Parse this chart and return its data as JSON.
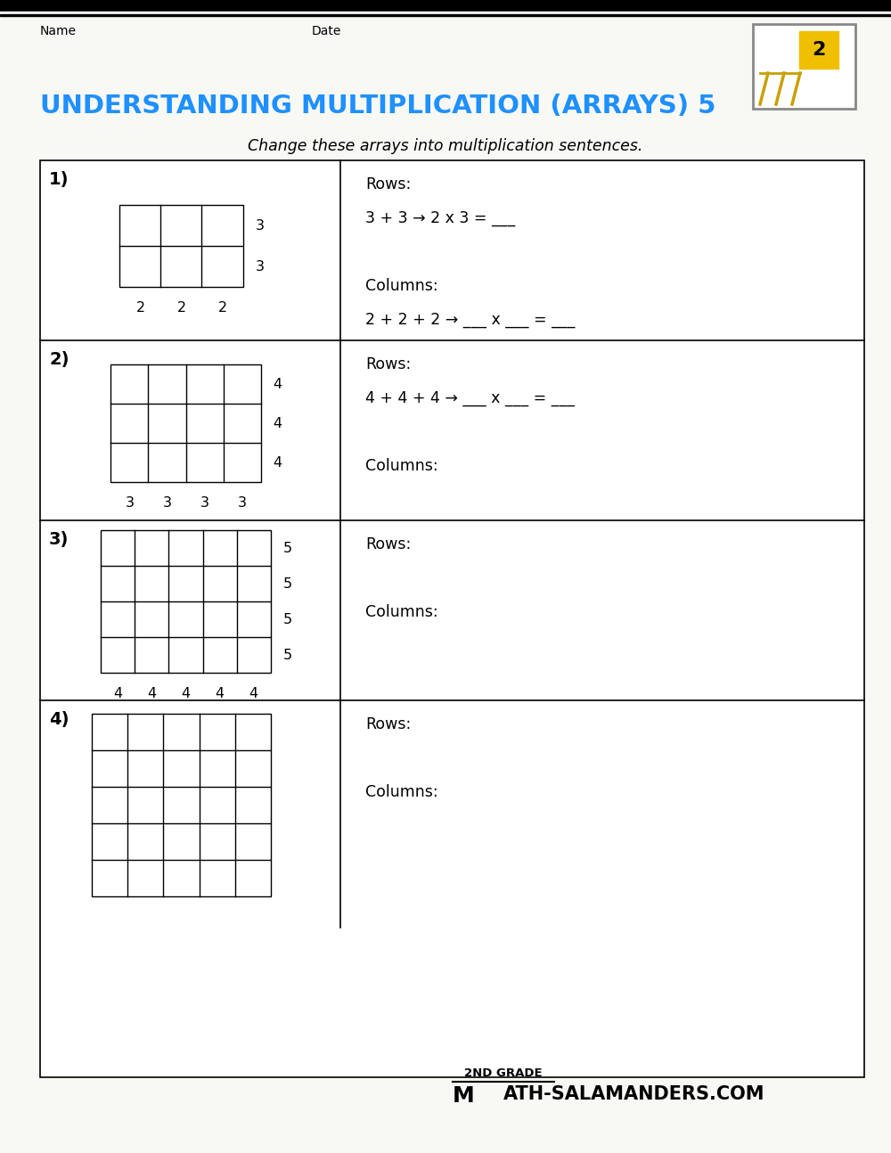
{
  "title": "UNDERSTANDING MULTIPLICATION (ARRAYS) 5",
  "subtitle": "Change these arrays into multiplication sentences.",
  "name_label": "Name",
  "date_label": "Date",
  "bg_color": "#f8f8f4",
  "title_color": "#1e90ff",
  "problems": [
    {
      "number": "1)",
      "rows": 2,
      "cols": 3,
      "row_label": "3",
      "col_label": "2",
      "right_lines": [
        "Rows:",
        "3 + 3 → 2 x 3 = ___",
        "",
        "Columns:",
        "2 + 2 + 2 → ___ x ___ = ___"
      ]
    },
    {
      "number": "2)",
      "rows": 3,
      "cols": 4,
      "row_label": "4",
      "col_label": "3",
      "right_lines": [
        "Rows:",
        "4 + 4 + 4 → ___ x ___ = ___",
        "",
        "Columns:"
      ]
    },
    {
      "number": "3)",
      "rows": 4,
      "cols": 5,
      "row_label": "5",
      "col_label": "4",
      "right_lines": [
        "Rows:",
        "",
        "Columns:"
      ]
    },
    {
      "number": "4)",
      "rows": 5,
      "cols": 5,
      "row_label": null,
      "col_label": null,
      "right_lines": [
        "Rows:",
        "",
        "Columns:"
      ]
    }
  ]
}
